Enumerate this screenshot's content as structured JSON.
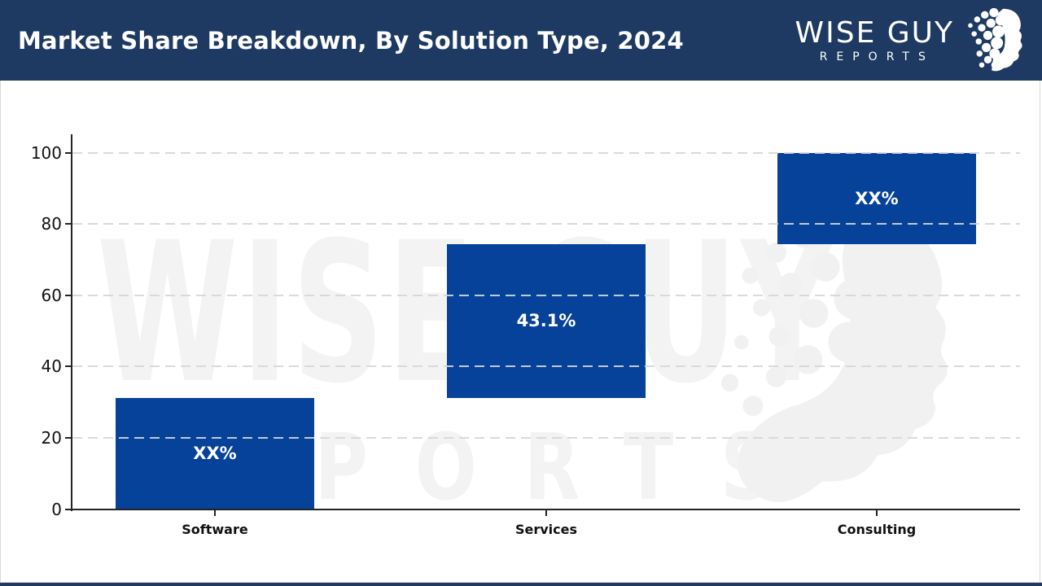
{
  "header": {
    "title": "Market Share Breakdown, By Solution Type, 2024",
    "logo": {
      "wordmark": "WISE GUY",
      "subtext": "REPORTS"
    }
  },
  "watermark": {
    "wordmark": "WISE GUY",
    "subtext": "REPORTS"
  },
  "colors": {
    "brand_navy": "#1e3a62",
    "bar_blue": "#064299",
    "gridline_gray": "#d6d6d6",
    "axis_dark": "#242424",
    "watermark_gray": "#f3f3f3"
  },
  "chart_data": {
    "type": "bar",
    "variant": "floating_waterfall_segments",
    "title": "Market Share Breakdown, By Solution Type, 2024",
    "categories": [
      "Software",
      "Services",
      "Consulting"
    ],
    "segments": [
      {
        "category": "Software",
        "start": 0,
        "end": 31.2,
        "height": 31.2,
        "label": "XX%"
      },
      {
        "category": "Services",
        "start": 31.2,
        "end": 74.3,
        "height": 43.1,
        "label": "43.1%"
      },
      {
        "category": "Consulting",
        "start": 74.3,
        "end": 100,
        "height": 25.7,
        "label": "XX%"
      }
    ],
    "ylim": [
      0,
      100
    ],
    "yticks": [
      0,
      20,
      40,
      60,
      80,
      100
    ],
    "xlabel": "",
    "ylabel": "",
    "grid": "horizontal-dashed-over-bars",
    "legend": "none",
    "bar_color": "#064299",
    "bar_label_color": "#ffffff"
  }
}
